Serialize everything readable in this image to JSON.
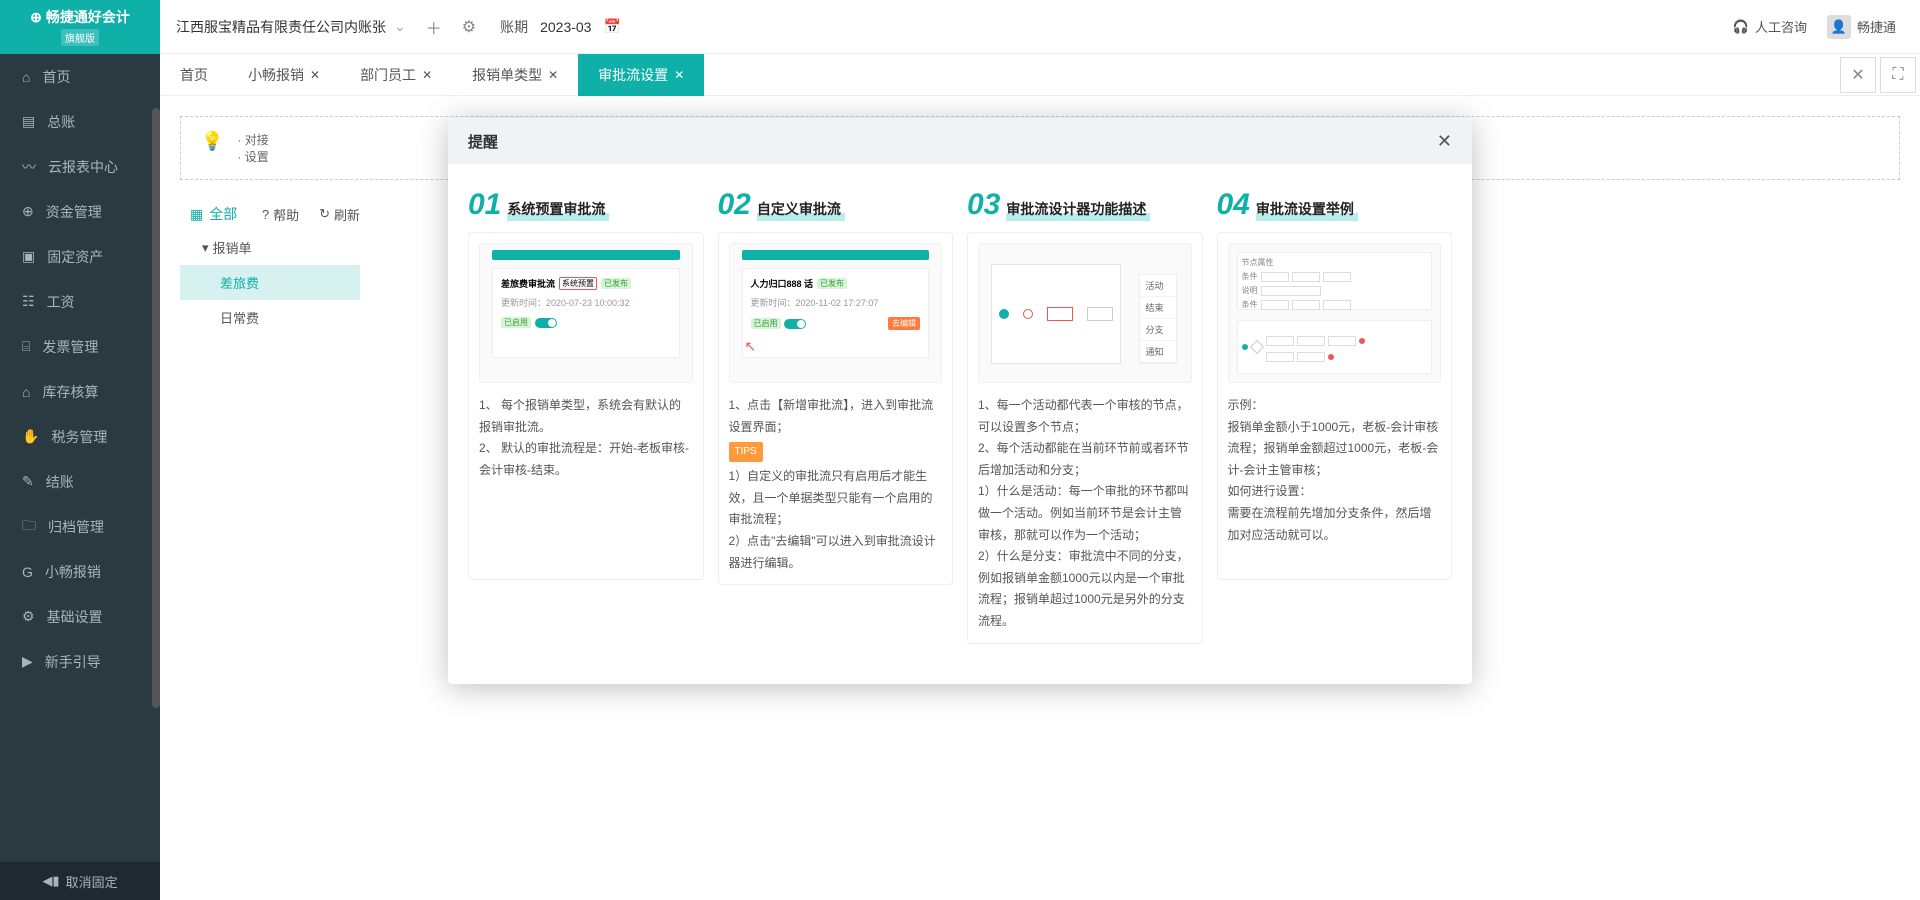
{
  "header": {
    "logo_text": "畅捷通好会计",
    "logo_badge": "旗舰版",
    "company": "江西服宝精品有限责任公司内账张",
    "period_label": "账期",
    "period_value": "2023-03",
    "consult": "人工咨询",
    "username": "畅捷通"
  },
  "sidebar": {
    "items": [
      {
        "icon": "⌂",
        "label": "首页"
      },
      {
        "icon": "▤",
        "label": "总账"
      },
      {
        "icon": "〰",
        "label": "云报表中心"
      },
      {
        "icon": "⊕",
        "label": "资金管理"
      },
      {
        "icon": "▣",
        "label": "固定资产"
      },
      {
        "icon": "☷",
        "label": "工资"
      },
      {
        "icon": "⌸",
        "label": "发票管理"
      },
      {
        "icon": "⌂",
        "label": "库存核算"
      },
      {
        "icon": "✋",
        "label": "税务管理"
      },
      {
        "icon": "✎",
        "label": "结账"
      },
      {
        "icon": "🗀",
        "label": "归档管理"
      },
      {
        "icon": "G",
        "label": "小畅报销"
      },
      {
        "icon": "⚙",
        "label": "基础设置"
      },
      {
        "icon": "▶",
        "label": "新手引导"
      }
    ],
    "footer": "取消固定"
  },
  "tabs": [
    {
      "label": "首页",
      "closable": false,
      "active": false
    },
    {
      "label": "小畅报销",
      "closable": true,
      "active": false
    },
    {
      "label": "部门员工",
      "closable": true,
      "active": false
    },
    {
      "label": "报销单类型",
      "closable": true,
      "active": false
    },
    {
      "label": "审批流设置",
      "closable": true,
      "active": true
    }
  ],
  "banner": {
    "line1": "· 对接",
    "line2": "· 设置"
  },
  "leftPanel": {
    "all": "全部",
    "tree_parent": "报销单",
    "tree_children": [
      "差旅费",
      "日常费"
    ]
  },
  "actions": {
    "help": "帮助",
    "refresh": "刷新"
  },
  "modal": {
    "title": "提醒",
    "cards": [
      {
        "num": "01",
        "title": "系统预置审批流",
        "thumb": {
          "name": "差旅费审批流",
          "tag1": "系统预置",
          "tag2": "已发布",
          "time_label": "更新时间：",
          "time": "2020-07-23 10:00:32",
          "toggle_label": "已启用"
        },
        "text": [
          "1、 每个报销单类型，系统会有默认的报销审批流。",
          "2、 默认的审批流程是：开始-老板审核-会计审核-结束。"
        ]
      },
      {
        "num": "02",
        "title": "自定义审批流",
        "thumb": {
          "name": "人力归口888 话",
          "tag2": "已发布",
          "time_label": "更新时间：",
          "time": "2020-11-02 17:27:07",
          "toggle_label": "已启用",
          "btn": "去编辑"
        },
        "tips": "TIPS",
        "text": [
          "1、点击【新增审批流】，进入到审批流设置界面；",
          "1）自定义的审批流只有启用后才能生效，且一个单据类型只能有一个启用的审批流程；",
          "2）点击\"去编辑\"可以进入到审批流设计器进行编辑。"
        ]
      },
      {
        "num": "03",
        "title": "审批流设计器功能描述",
        "thumb": {
          "menu": [
            "活动",
            "结束",
            "分支",
            "通知"
          ]
        },
        "text": [
          "1、每一个活动都代表一个审核的节点，可以设置多个节点；",
          "2、每个活动都能在当前环节前或者环节后增加活动和分支；",
          "1）什么是活动：每一个审批的环节都叫做一个活动。例如当前环节是会计主管审核，那就可以作为一个活动；",
          "2）什么是分支：审批流中不同的分支，例如报销单金额1000元以内是一个审批流程；报销单超过1000元是另外的分支流程。"
        ]
      },
      {
        "num": "04",
        "title": "审批流设置举例",
        "text": [
          "示例：",
          "报销单金额小于1000元，老板-会计审核流程；报销单金额超过1000元，老板-会计-会计主管审核；",
          "如何进行设置：",
          "需要在流程前先增加分支条件，然后增加对应活动就可以。"
        ]
      }
    ]
  }
}
